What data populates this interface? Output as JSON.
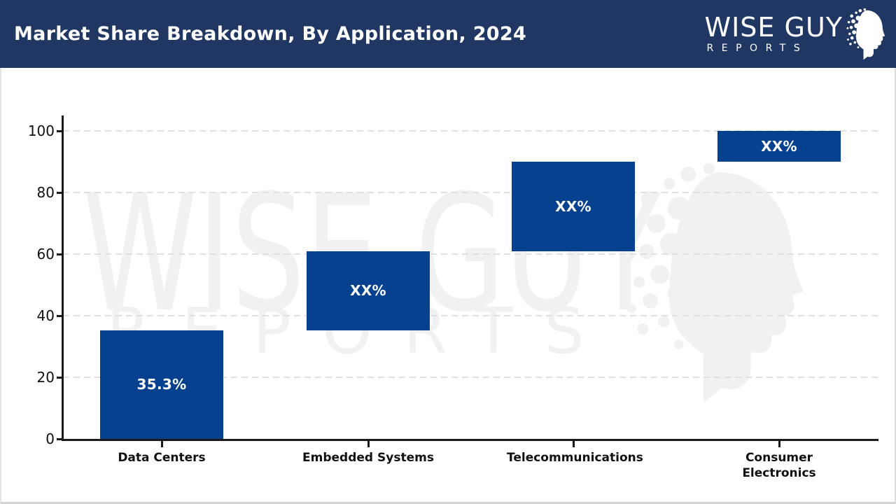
{
  "header": {
    "title": "Market Share Breakdown, By Application, 2024",
    "logo": {
      "wordmark": "WISE GUY",
      "subtitle": "REPORTS"
    }
  },
  "watermark": {
    "wordmark": "WISE GUY",
    "subtitle": "REPORTS"
  },
  "chart_data": {
    "type": "bar",
    "variant": "waterfall",
    "title": "Market Share Breakdown, By Application, 2024",
    "categories": [
      "Data Centers",
      "Embedded Systems",
      "Telecommunications",
      "Consumer Electronics"
    ],
    "series": [
      {
        "name": "Market share by application (%)",
        "segments": [
          {
            "category": "Data Centers",
            "start": 0,
            "end": 35.3,
            "label": "35.3%"
          },
          {
            "category": "Embedded Systems",
            "start": 35.3,
            "end": 61,
            "label": "XX%"
          },
          {
            "category": "Telecommunications",
            "start": 61,
            "end": 90,
            "label": "XX%"
          },
          {
            "category": "Consumer Electronics",
            "start": 90,
            "end": 100,
            "label": "XX%"
          }
        ]
      }
    ],
    "xlabel": "",
    "ylabel": "",
    "yticks": [
      0,
      20,
      40,
      60,
      80,
      100
    ],
    "ylim": [
      0,
      105
    ],
    "grid": "horizontal-dashed",
    "legend": "none",
    "colors": {
      "bar": "#05418f",
      "bar_label": "#ffffff",
      "grid": "#e0e0e0",
      "axis": "#1a1a1a",
      "header_bg": "#203764",
      "watermark": "#f1f1f4"
    }
  }
}
